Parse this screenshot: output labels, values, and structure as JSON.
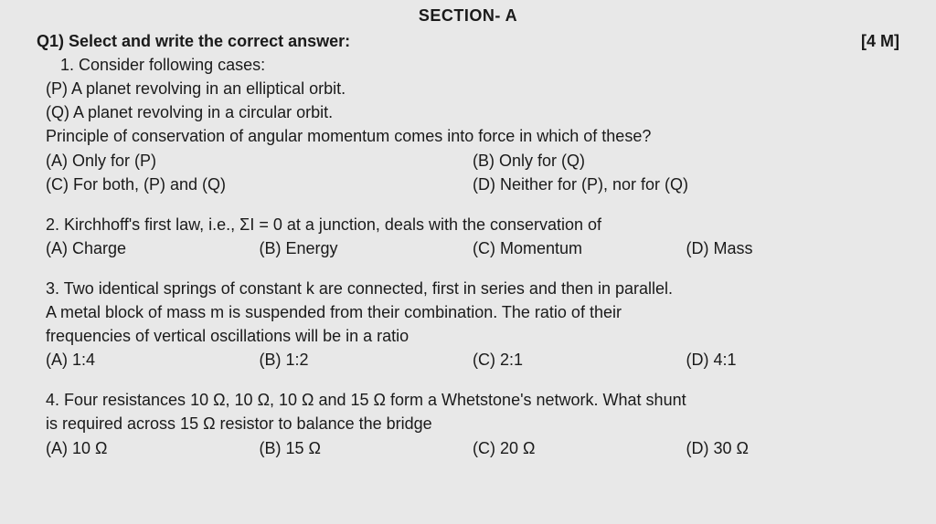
{
  "section_header": "SECTION- A",
  "q1": {
    "heading": "Q1) Select and write the correct answer:",
    "marks": "[4 M]",
    "sub1": {
      "stem": "1. Consider following cases:",
      "p": "(P) A planet revolving in an elliptical orbit.",
      "q": "(Q) A planet revolving in a circular orbit.",
      "question": "Principle of conservation of angular momentum comes into force in which of these?",
      "opts": {
        "a": "(A) Only for (P)",
        "b": "(B) Only for (Q)",
        "c": "(C) For both, (P) and (Q)",
        "d": "(D) Neither for (P), nor for (Q)"
      }
    },
    "sub2": {
      "stem": "2. Kirchhoff's first law, i.e., ΣI = 0 at a junction, deals with the conservation of",
      "opts": {
        "a": "(A) Charge",
        "b": "(B) Energy",
        "c": "(C) Momentum",
        "d": "(D) Mass"
      }
    },
    "sub3": {
      "stem1": "3. Two identical springs of constant k are connected, first in series and then in parallel.",
      "stem2": "A metal block of mass m is suspended from their combination. The ratio of their",
      "stem3": "frequencies of vertical oscillations will be in a ratio",
      "opts": {
        "a": "(A) 1:4",
        "b": "(B) 1:2",
        "c": "(C) 2:1",
        "d": "(D) 4:1"
      }
    },
    "sub4": {
      "stem1": "4. Four resistances 10 Ω, 10 Ω, 10 Ω and 15 Ω form a Whetstone's network. What shunt",
      "stem2": "is required across 15 Ω resistor to balance the bridge",
      "opts": {
        "a": "(A) 10 Ω",
        "b": "(B) 15 Ω",
        "c": "(C) 20 Ω",
        "d": "(D) 30 Ω"
      }
    }
  }
}
